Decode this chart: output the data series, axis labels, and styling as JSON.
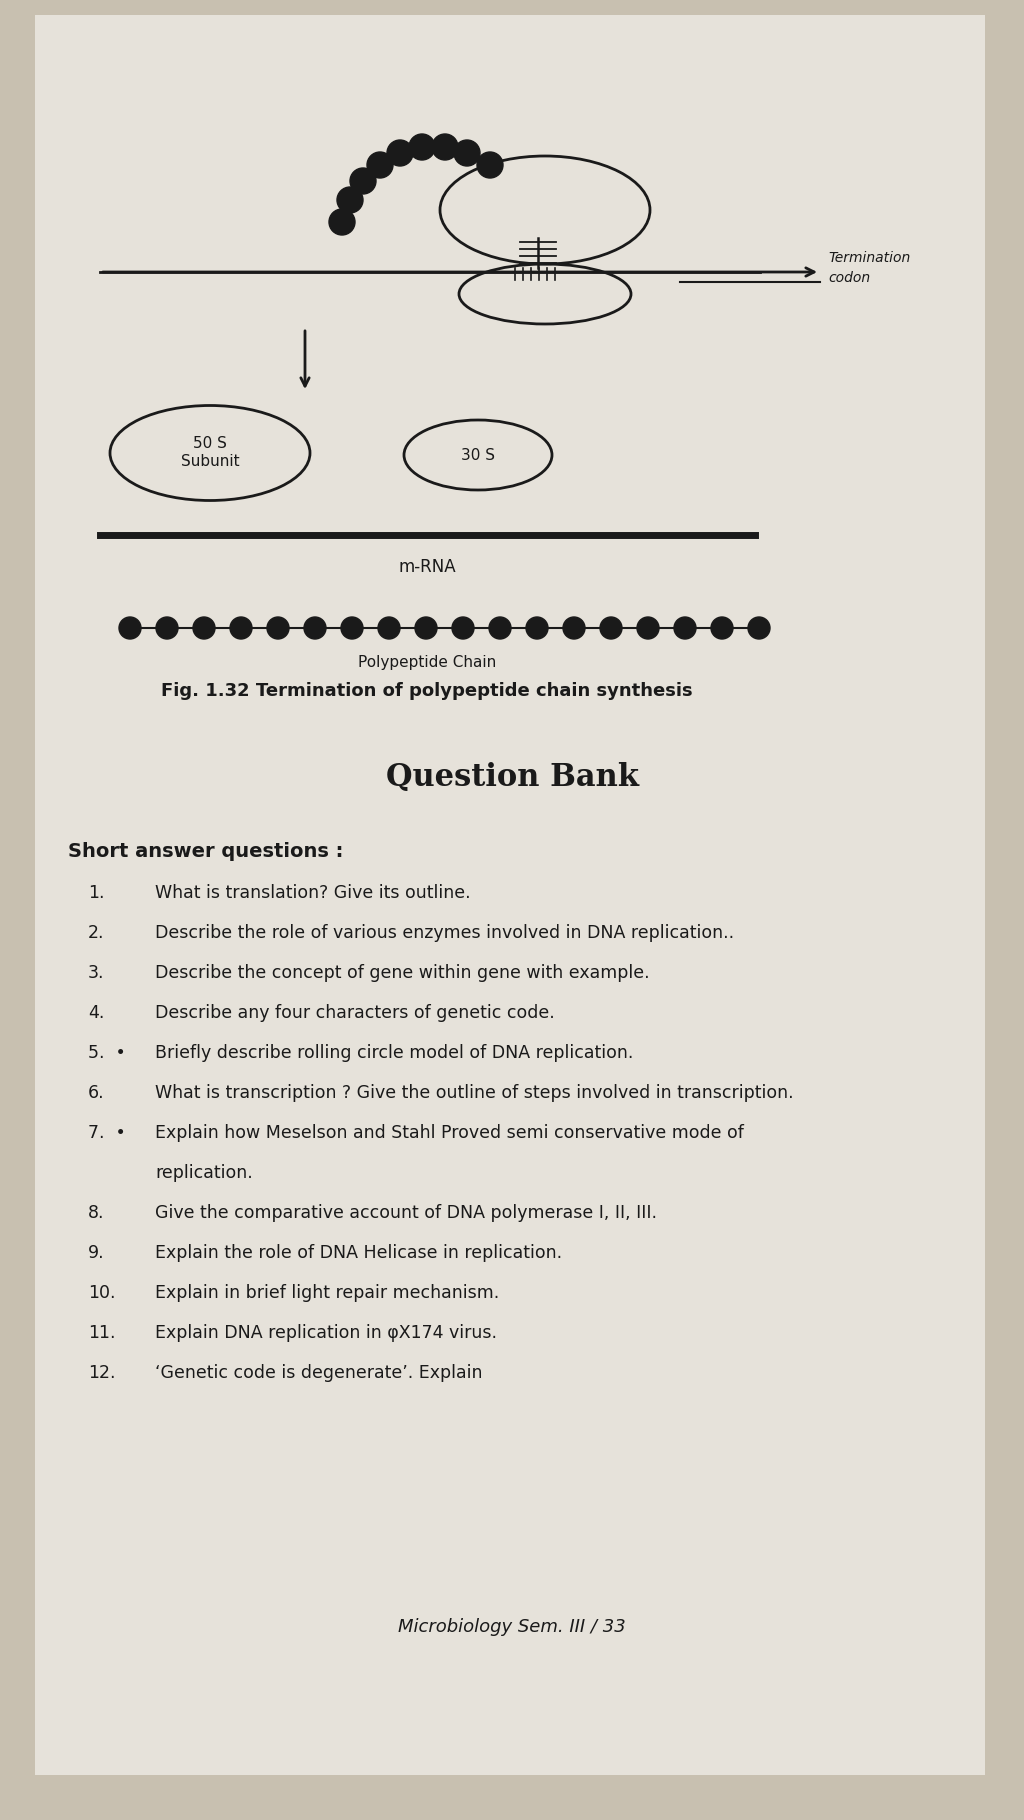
{
  "bg_color": "#c8c0b0",
  "page_color": "#e6e2da",
  "title_diagram": "Fig. 1.32 Termination of polypeptide chain synthesis",
  "polypeptide_label": "Polypeptide Chain",
  "mrna_label": "m-RNA",
  "termination_codon_label": "Termination\ncodon",
  "subunit_50_line1": "50 S",
  "subunit_50_line2": "Subunit",
  "subunit_30_label": "30 S",
  "question_bank_title": "Question Bank",
  "short_answer_header": "Short answer questions :",
  "questions": [
    [
      "1.",
      "What is translation? Give its outline."
    ],
    [
      "2.",
      "Describe the role of various enzymes involved in DNA replication.."
    ],
    [
      "3.",
      "Describe the concept of gene within gene with example."
    ],
    [
      "4.",
      "Describe any four characters of genetic code."
    ],
    [
      "5.  •",
      "Briefly describe rolling circle model of DNA replication."
    ],
    [
      "6.",
      "What is transcription ? Give the outline of steps involved in transcription."
    ],
    [
      "7.  •",
      "Explain how Meselson and Stahl Proved semi conservative mode of"
    ],
    [
      "",
      "replication."
    ],
    [
      "8.",
      "Give the comparative account of DNA polymerase I, II, III."
    ],
    [
      "9.",
      "Explain the role of DNA Helicase in replication."
    ],
    [
      "10.",
      "Explain in brief light repair mechanism."
    ],
    [
      "11.",
      "Explain DNA replication in φX174 virus."
    ],
    [
      "12.",
      "‘Genetic code is degenerate’. Explain"
    ]
  ],
  "footer": "Microbiology Sem. III / 33",
  "dc": "#1a1a1a"
}
